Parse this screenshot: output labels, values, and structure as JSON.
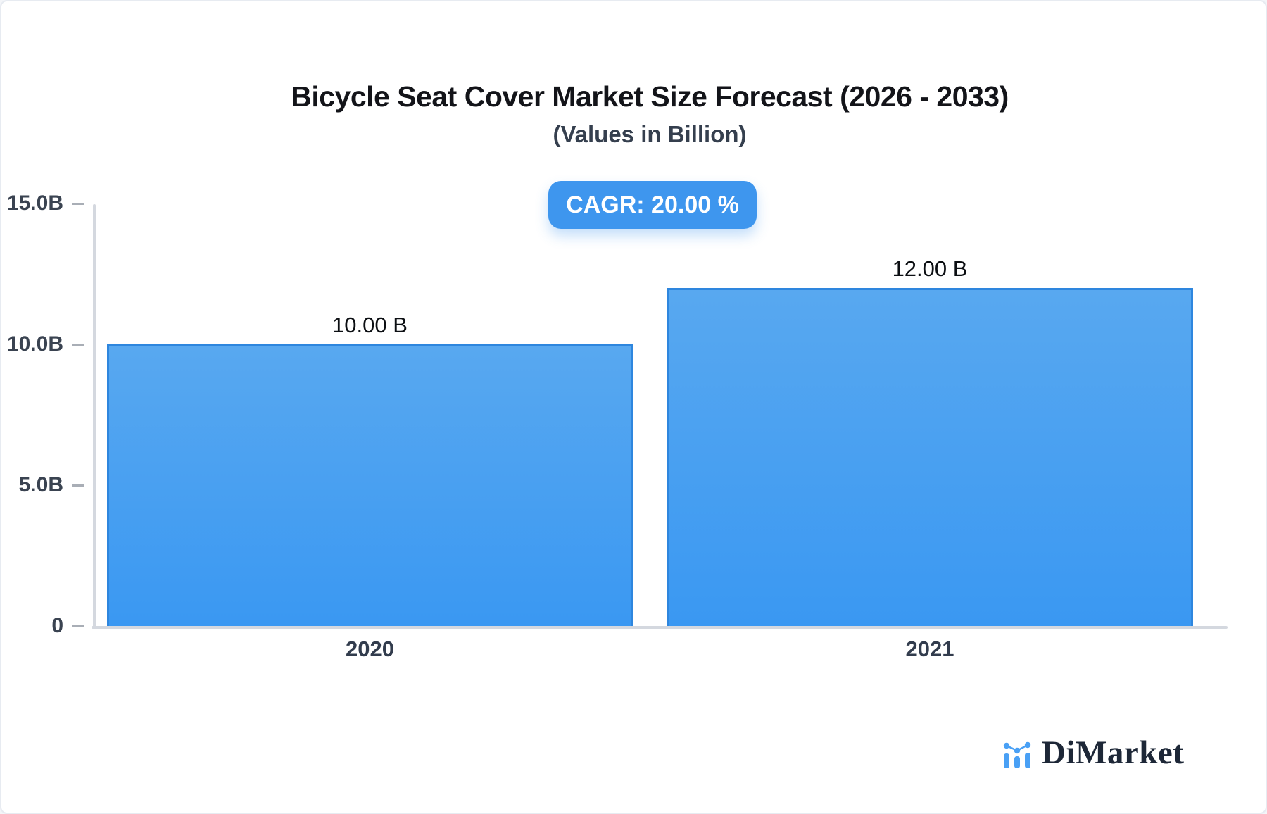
{
  "header": {
    "title": "Bicycle Seat Cover Market Size Forecast (2026 - 2033)",
    "subtitle": "(Values in Billion)",
    "cagr_badge": "CAGR: 20.00 %"
  },
  "footer": {
    "brand": "DiMarket",
    "brand_icon": "bar-chart-logo-icon"
  },
  "colors": {
    "accent_blue": "#3e96ee",
    "bar_fill_top": "#58a8f0",
    "bar_fill_bottom": "#3a98f2",
    "bar_border": "#2e86de",
    "axis_line": "#d4d8df",
    "tick_dash": "#a9aeb6",
    "brand_blue": "#49a0f5",
    "brand_navy": "#1d2737"
  },
  "chart_data": {
    "type": "bar",
    "title": "Bicycle Seat Cover Market Size Forecast (2026 - 2033)",
    "subtitle": "(Values in Billion)",
    "cagr": "20.00 %",
    "unit": "Billion",
    "categories": [
      "2020",
      "2021"
    ],
    "values": [
      10.0,
      12.0
    ],
    "value_labels": [
      "10.00 B",
      "12.00 B"
    ],
    "ylim": [
      0,
      15
    ],
    "y_ticks": [
      {
        "label": "15.0B",
        "value": 15
      },
      {
        "label": "10.0B",
        "value": 10
      },
      {
        "label": "5.0B",
        "value": 5
      },
      {
        "label": "0",
        "value": 0
      }
    ],
    "grid": false,
    "legend": false
  }
}
